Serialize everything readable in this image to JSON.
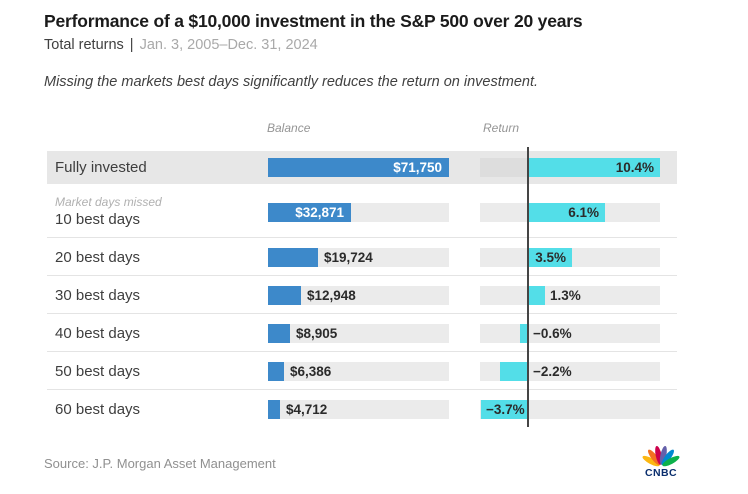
{
  "header": {
    "title": "Performance of a $10,000 investment in the S&P 500 over 20 years",
    "subtitle_label": "Total returns",
    "subtitle_divider": "|",
    "subtitle_period": "Jan. 3, 2005–Dec. 31, 2024",
    "note": "Missing the markets best days significantly reduces the return on investment."
  },
  "chart_data": {
    "type": "bar",
    "title": "Performance of a $10,000 investment in the S&P 500 over 20 years",
    "subtitle": "Total returns | Jan. 3, 2005–Dec. 31, 2024",
    "annotation": "Missing the markets best days significantly reduces the return on investment.",
    "columns": {
      "balance": "Balance",
      "return": "Return"
    },
    "rows": [
      {
        "label": "Fully invested",
        "sublabel": "",
        "balance": 71750,
        "balance_label": "$71,750",
        "return": 10.4,
        "return_label": "10.4%",
        "highlight": true
      },
      {
        "label": "10 best days",
        "sublabel": "Market days missed",
        "balance": 32871,
        "balance_label": "$32,871",
        "return": 6.1,
        "return_label": "6.1%",
        "highlight": false
      },
      {
        "label": "20 best days",
        "sublabel": "",
        "balance": 19724,
        "balance_label": "$19,724",
        "return": 3.5,
        "return_label": "3.5%",
        "highlight": false
      },
      {
        "label": "30 best days",
        "sublabel": "",
        "balance": 12948,
        "balance_label": "$12,948",
        "return": 1.3,
        "return_label": "1.3%",
        "highlight": false
      },
      {
        "label": "40 best days",
        "sublabel": "",
        "balance": 8905,
        "balance_label": "$8,905",
        "return": -0.6,
        "return_label": "−0.6%",
        "highlight": false
      },
      {
        "label": "50 best days",
        "sublabel": "",
        "balance": 6386,
        "balance_label": "$6,386",
        "return": -2.2,
        "return_label": "−2.2%",
        "highlight": false
      },
      {
        "label": "60 best days",
        "sublabel": "",
        "balance": 4712,
        "balance_label": "$4,712",
        "return": -3.7,
        "return_label": "−3.7%",
        "highlight": false
      }
    ],
    "axes": {
      "balance_max": 71750,
      "return_max": 10.4,
      "return_min": -3.78,
      "grid": false,
      "legend": false
    }
  },
  "colors": {
    "balance_bar": "#3d89ca",
    "return_bar": "#53dee8",
    "track": "#ebebeb",
    "track_on_highlight": "#dddddd",
    "row_highlight": "#e7e7e7",
    "zero_line": "#454545",
    "value_inside_blue": "#ffffff",
    "value_dark": "#2b2b2b",
    "logo_text": "#0b2f6e",
    "peacock": [
      "#FCB711",
      "#F37021",
      "#CC004C",
      "#6460AA",
      "#0089D0",
      "#0DB14B"
    ]
  },
  "footer": {
    "source": "Source: J.P. Morgan Asset Management",
    "logo_text": "CNBC"
  }
}
